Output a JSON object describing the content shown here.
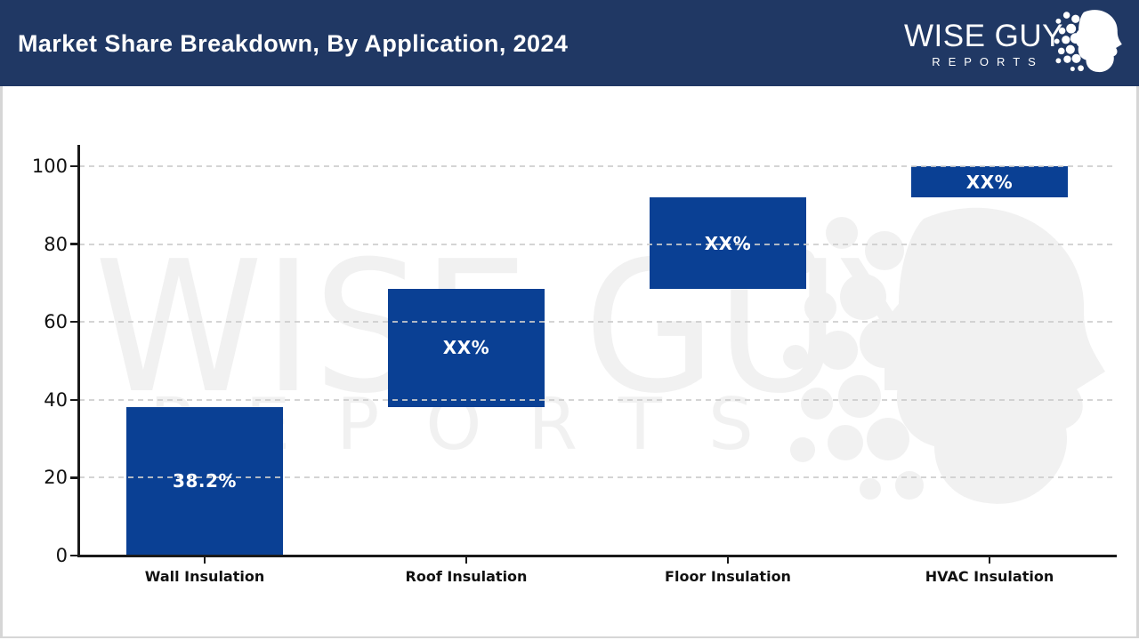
{
  "header": {
    "title": "Market Share Breakdown, By Application, 2024",
    "logo": {
      "name": "WISE GUY",
      "tagline": "REPORTS"
    }
  },
  "watermark": {
    "line1": "WISE GUY",
    "line2": "REPORTS"
  },
  "chart_data": {
    "type": "bar",
    "subtype": "waterfall",
    "title": "Market Share Breakdown, By Application, 2024",
    "categories": [
      "Wall Insulation",
      "Roof Insulation",
      "Floor Insulation",
      "HVAC Insulation"
    ],
    "series": [
      {
        "name": "Market share (%)",
        "segments": [
          {
            "category": "Wall Insulation",
            "start": 0,
            "end": 38.2,
            "label": "38.2%"
          },
          {
            "category": "Roof Insulation",
            "start": 38.2,
            "end": 68.6,
            "label": "XX%"
          },
          {
            "category": "Floor Insulation",
            "start": 68.6,
            "end": 91.9,
            "label": "XX%"
          },
          {
            "category": "HVAC Insulation",
            "start": 91.9,
            "end": 100,
            "label": "XX%"
          }
        ]
      }
    ],
    "y_ticks": [
      0,
      20,
      40,
      60,
      80,
      100
    ],
    "ylim": [
      0,
      105
    ],
    "xlabel": "",
    "ylabel": "",
    "grid": "dashed-horizontal",
    "legend": "none",
    "colors": {
      "bar": "#0a4094",
      "header_bg": "#203864",
      "grid": "#cdcdcd",
      "axis": "#1a1a1a",
      "bar_label": "#ffffff",
      "watermark": "#f1f1f1"
    }
  }
}
